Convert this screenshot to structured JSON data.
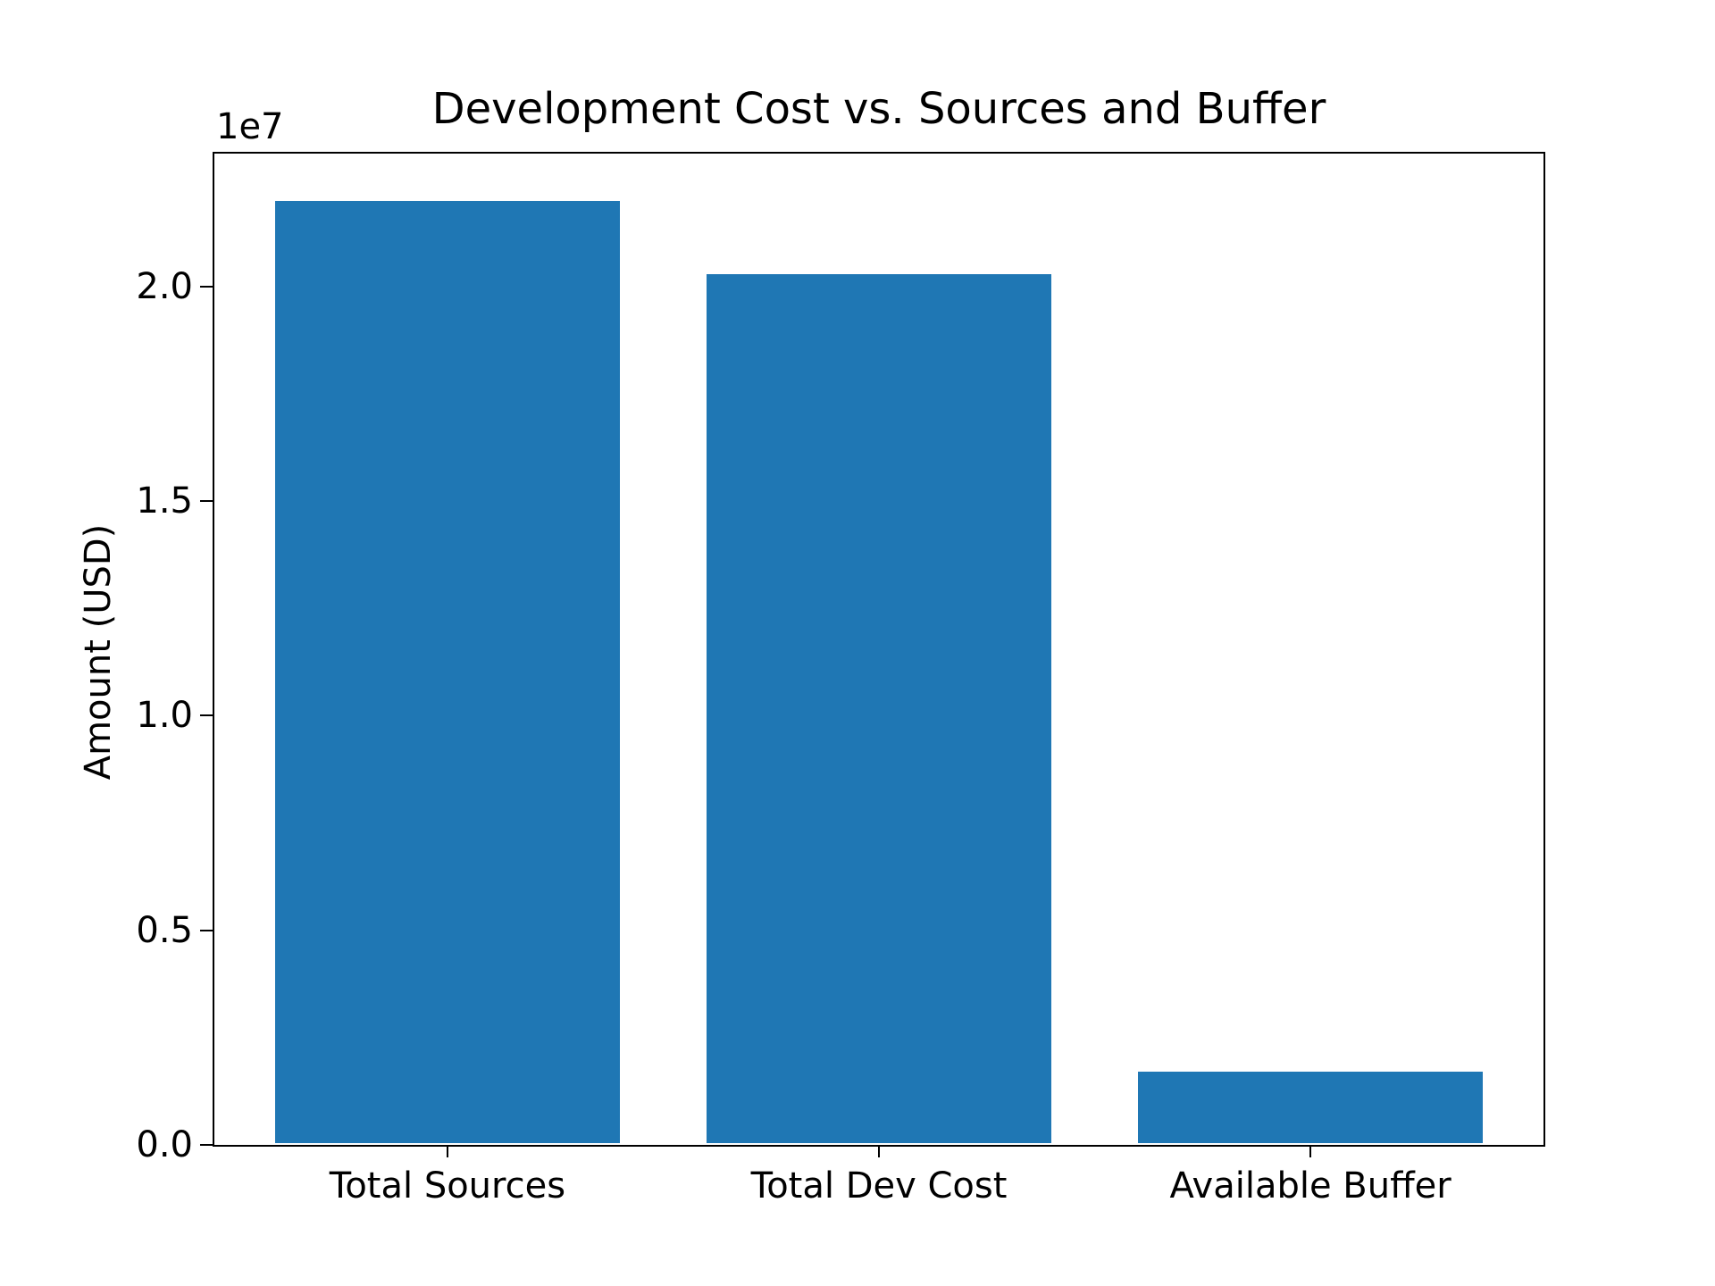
{
  "chart_data": {
    "type": "bar",
    "title": "Development Cost vs. Sources and Buffer",
    "categories": [
      "Total Sources",
      "Total Dev Cost",
      "Available Buffer"
    ],
    "values": [
      22000000,
      20300000,
      1700000
    ],
    "xlabel": "",
    "ylabel": "Amount (USD)",
    "offset_text": "1e7",
    "yticks": [
      0,
      5000000,
      10000000,
      15000000,
      20000000
    ],
    "ytick_labels": [
      "0.0",
      "0.5",
      "1.0",
      "1.5",
      "2.0"
    ],
    "ylim": [
      0,
      23100000
    ],
    "xlim": [
      -0.54,
      2.54
    ],
    "bar_width": 0.8,
    "bar_color": "#1f77b4",
    "axis_color": "#000000",
    "background_color": "#ffffff",
    "grid": false,
    "legend": null
  }
}
